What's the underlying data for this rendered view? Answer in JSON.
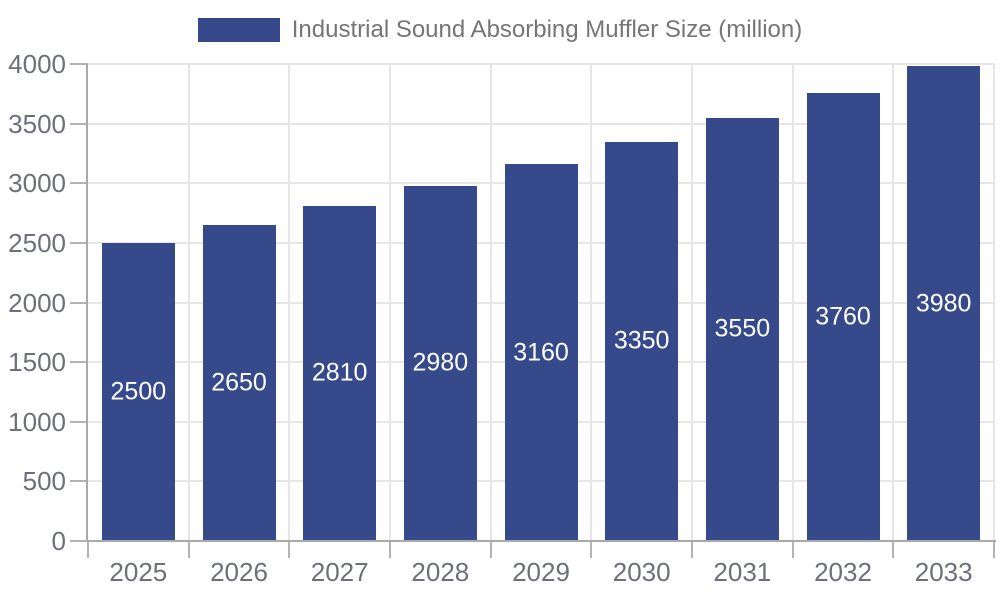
{
  "legend": {
    "label": "Industrial Sound Absorbing Muffler Size (million)"
  },
  "chart_data": {
    "type": "bar",
    "title": "Industrial Sound Absorbing Muffler Size (million)",
    "categories": [
      "2025",
      "2026",
      "2027",
      "2028",
      "2029",
      "2030",
      "2031",
      "2032",
      "2033"
    ],
    "series": [
      {
        "name": "Industrial Sound Absorbing Muffler Size (million)",
        "values": [
          2500,
          2650,
          2810,
          2980,
          3160,
          3350,
          3550,
          3760,
          3980
        ]
      }
    ],
    "xlabel": "",
    "ylabel": "",
    "ylim": [
      0,
      4000
    ],
    "yticks": [
      0,
      500,
      1000,
      1500,
      2000,
      2500,
      3000,
      3500,
      4000
    ],
    "grid": true,
    "legend_position": "top-center",
    "value_labels": "inside-center",
    "colors": {
      "bar": "#36498B",
      "grid": "#E6E6E6",
      "axis_line": "#A9A9A9",
      "tick": "#B3B3B3",
      "axis_label": "#6E7079",
      "legend_text": "#757575",
      "value_label": "#FFFFFF",
      "background": "#FFFFFF"
    }
  }
}
